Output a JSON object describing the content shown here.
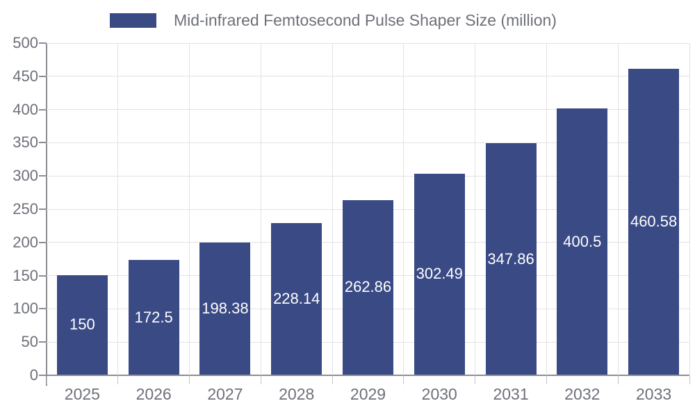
{
  "chart_data": {
    "type": "bar",
    "title": "Mid-infrared Femtosecond Pulse Shaper Size (million)",
    "categories": [
      "2025",
      "2026",
      "2027",
      "2028",
      "2029",
      "2030",
      "2031",
      "2032",
      "2033"
    ],
    "series": [
      {
        "name": "Mid-infrared Femtosecond Pulse Shaper Size (million)",
        "values": [
          150,
          172.5,
          198.38,
          228.14,
          262.86,
          302.49,
          347.86,
          400.5,
          460.58
        ]
      }
    ],
    "value_labels": [
      "150",
      "172.5",
      "198.38",
      "228.14",
      "262.86",
      "302.49",
      "347.86",
      "400.5",
      "460.58"
    ],
    "xlabel": "",
    "ylabel": "",
    "ylim": [
      0,
      500
    ],
    "yticks": [
      0,
      50,
      100,
      150,
      200,
      250,
      300,
      350,
      400,
      450,
      500
    ],
    "grid": true,
    "legend_position": "top",
    "value_label_position": "inside-center",
    "colors": {
      "bar": "#3A4A85",
      "value_label": "#FFFFFF",
      "tick_label": "#6E7079",
      "legend_text": "#6E7079",
      "grid_line": "#E2E2E6",
      "axis_line": "#8C8C92",
      "background": "#FFFFFF"
    }
  },
  "legend": {
    "label": "Mid-infrared Femtosecond Pulse Shaper Size (million)"
  }
}
